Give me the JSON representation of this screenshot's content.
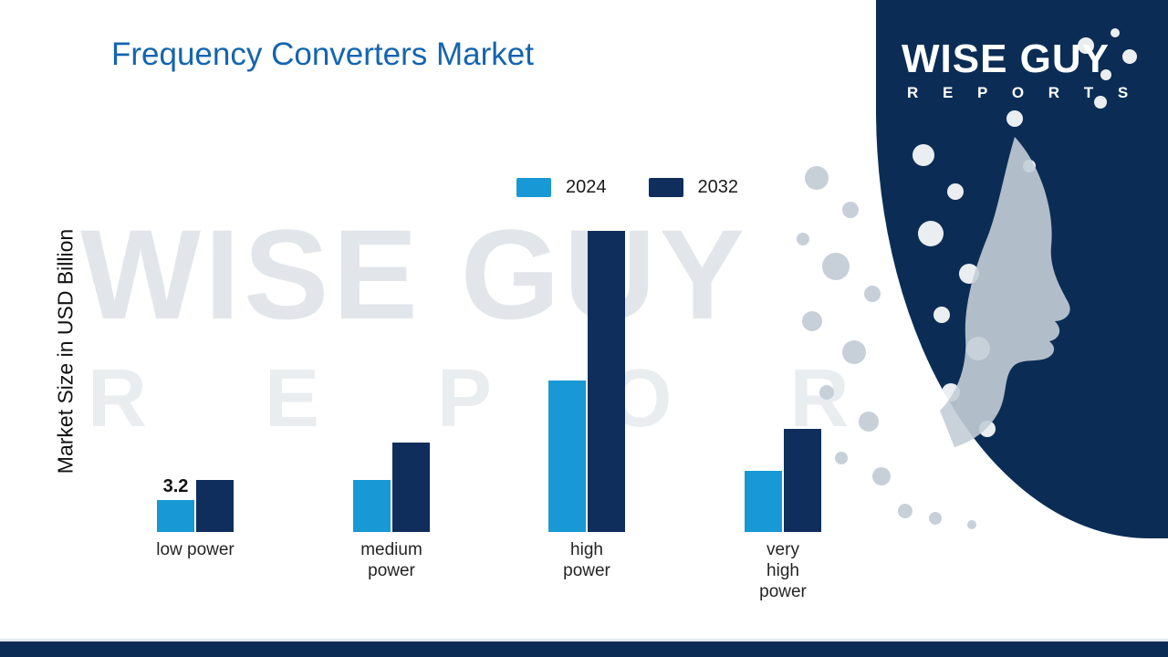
{
  "title": "Frequency Converters Market",
  "brand": {
    "name_top": "WISE GUY",
    "name_bottom": "R E P O R T S"
  },
  "watermark": {
    "line1": "WISE GUY",
    "line2": "R E P O R T S"
  },
  "ylabel": "Market Size in USD Billion",
  "legend": [
    {
      "label": "2024",
      "color": "#1898d4"
    },
    {
      "label": "2032",
      "color": "#102e5c"
    }
  ],
  "colors": {
    "accent_blue": "#1898d4",
    "navy": "#0b2d55",
    "title_blue": "#1565ae"
  },
  "chart_data": {
    "type": "bar",
    "title": "Frequency Converters Market",
    "xlabel": "",
    "ylabel": "Market Size in USD Billion",
    "categories": [
      "low power",
      "medium power",
      "high power",
      "very high power"
    ],
    "categories_display": [
      [
        "low power"
      ],
      [
        "medium",
        "power"
      ],
      [
        "high",
        "power"
      ],
      [
        "very",
        "high",
        "power"
      ]
    ],
    "series": [
      {
        "name": "2024",
        "color": "#1898d4",
        "values": [
          3.2,
          5.2,
          15.1,
          6.1
        ]
      },
      {
        "name": "2032",
        "color": "#102e5c",
        "values": [
          5.2,
          8.9,
          30.1,
          10.3
        ]
      }
    ],
    "annotations": [
      {
        "category_index": 0,
        "series_index": 0,
        "label": "3.2"
      }
    ],
    "ylim": [
      0,
      33
    ],
    "grid": false,
    "legend_position": "top"
  }
}
